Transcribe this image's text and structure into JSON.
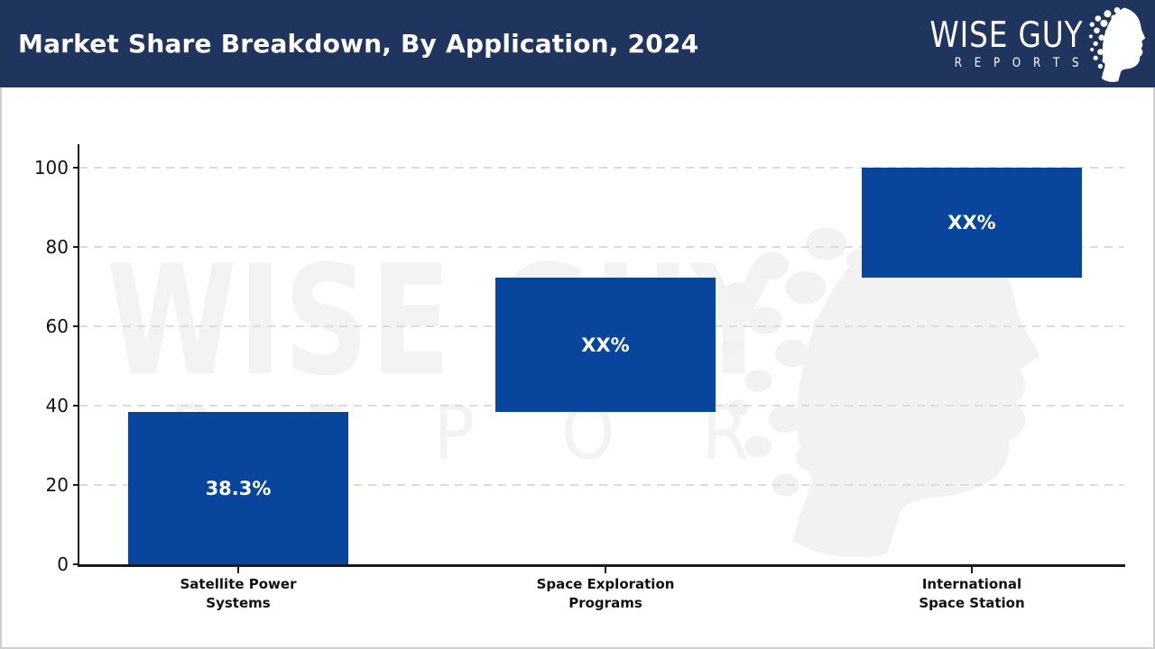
{
  "header": {
    "title": "Market Share Breakdown, By Application, 2024",
    "logo": {
      "wordmark": "WISE GUY",
      "subtext": "R E P O R T S"
    }
  },
  "watermark": {
    "line1": "WISE GUY",
    "line2": "R E P O R T S"
  },
  "chart_data": {
    "type": "bar",
    "subtype": "waterfall-range-segments",
    "title": "Market Share Breakdown, By Application, 2024",
    "categories": [
      [
        "Satellite Power",
        "Systems"
      ],
      [
        "Space Exploration",
        "Programs"
      ],
      [
        "International",
        "Space Station"
      ]
    ],
    "segments": [
      {
        "category": "Satellite Power Systems",
        "start": 0,
        "end": 38.3,
        "label": "38.3%"
      },
      {
        "category": "Space Exploration Programs",
        "start": 38.3,
        "end": 72.3,
        "label": "XX%"
      },
      {
        "category": "International Space Station",
        "start": 72.3,
        "end": 100,
        "label": "XX%"
      }
    ],
    "ylim": [
      0,
      100
    ],
    "yticks": [
      0,
      20,
      40,
      60,
      80,
      100
    ],
    "grid": {
      "horizontal": true,
      "style": "dashed"
    },
    "legend": null,
    "colors": {
      "bar": "#08459d",
      "bar_label": "#ffffff",
      "axis": "#1a1a1a",
      "gridline": "#dcdcdc",
      "tick_label": "#111111",
      "header_bg": "#1f355e",
      "header_text": "#ffffff",
      "watermark": "#f2f2f2"
    }
  }
}
